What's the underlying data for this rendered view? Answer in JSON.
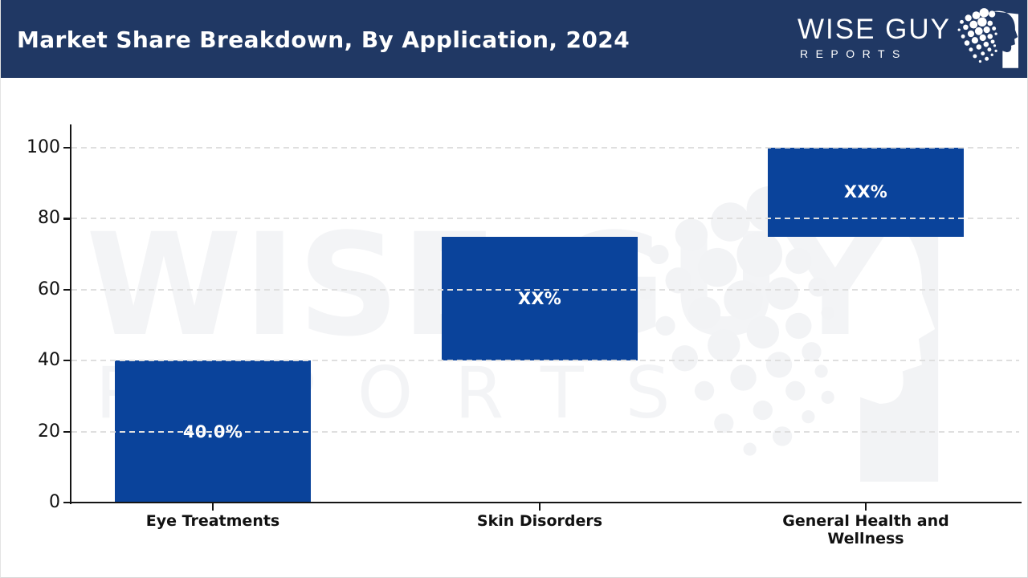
{
  "header": {
    "title": "Market Share Breakdown, By Application, 2024",
    "logo": {
      "line1": "WISE GUY",
      "line2": "REPORTS"
    }
  },
  "watermark": {
    "line1": "WISE GUY",
    "line2": "REPORTS"
  },
  "chart_data": {
    "type": "bar",
    "variant": "waterfall",
    "title": "Market Share Breakdown, By Application, 2024",
    "categories": [
      "Eye Treatments",
      "Skin Disorders",
      "General Health and Wellness"
    ],
    "segments": [
      {
        "category": "Eye Treatments",
        "start": 0,
        "end": 40,
        "label": "40.0%"
      },
      {
        "category": "Skin Disorders",
        "start": 40,
        "end": 75,
        "label": "XX%"
      },
      {
        "category": "General Health and Wellness",
        "start": 75,
        "end": 100,
        "label": "XX%"
      }
    ],
    "yticks": [
      0,
      20,
      40,
      60,
      80,
      100
    ],
    "ylim": [
      0,
      106
    ],
    "grid": true,
    "legend": false,
    "colors": {
      "bar": "#0A439B",
      "header_bg": "#203864",
      "gridline": "#dfdfdf",
      "axis": "#151515",
      "bar_label_text": "#ffffff",
      "watermark": "#f3f4f6"
    }
  }
}
